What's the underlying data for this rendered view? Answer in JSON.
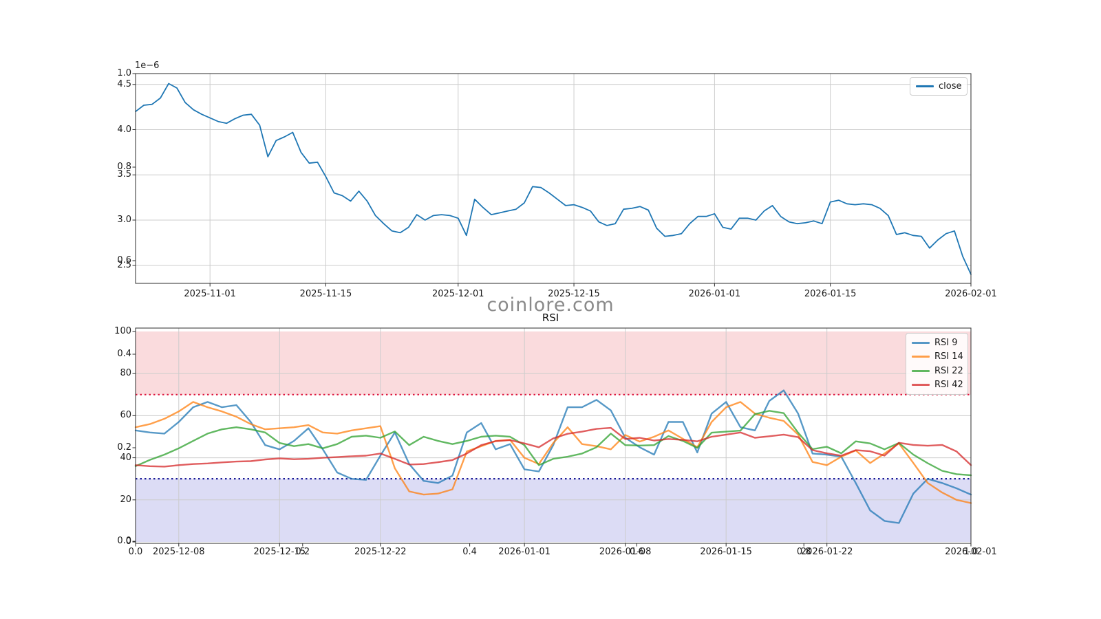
{
  "watermark": "coinlore.com",
  "ghost_axis": {
    "yticks": [
      "1.0",
      "0.8",
      "0.6",
      "0.4",
      "0.2",
      "0.0"
    ],
    "xticks": [
      "0.0",
      "0.2",
      "0.4",
      "0.6",
      "0.8",
      "1.0"
    ]
  },
  "chart_data": [
    {
      "type": "line",
      "title": "",
      "offset_text": "1e−6",
      "legend_position": "upper right",
      "grid": true,
      "x_start_date": "2025-10-23",
      "x_interval": "daily",
      "xticks": [
        {
          "label": "2025-11-01",
          "day": 9
        },
        {
          "label": "2025-11-15",
          "day": 23
        },
        {
          "label": "2025-12-01",
          "day": 39
        },
        {
          "label": "2025-12-15",
          "day": 53
        },
        {
          "label": "2026-01-01",
          "day": 70
        },
        {
          "label": "2026-01-15",
          "day": 84
        },
        {
          "label": "2026-02-01",
          "day": 101
        }
      ],
      "yticks": [
        4.5,
        4.0,
        3.5,
        3.0,
        2.5
      ],
      "ylim": [
        2.3,
        4.62
      ],
      "y_unit_multiplier": "1e-6",
      "series": [
        {
          "name": "close",
          "color": "#1f77b4",
          "values": [
            4.2,
            4.27,
            4.28,
            4.35,
            4.51,
            4.46,
            4.3,
            4.22,
            4.17,
            4.13,
            4.09,
            4.07,
            4.12,
            4.16,
            4.17,
            4.05,
            3.7,
            3.88,
            3.92,
            3.97,
            3.75,
            3.63,
            3.64,
            3.48,
            3.3,
            3.27,
            3.21,
            3.32,
            3.21,
            3.05,
            2.96,
            2.88,
            2.86,
            2.92,
            3.06,
            3.0,
            3.05,
            3.06,
            3.05,
            3.02,
            2.83,
            3.23,
            3.14,
            3.06,
            3.08,
            3.1,
            3.12,
            3.19,
            3.37,
            3.36,
            3.3,
            3.23,
            3.16,
            3.17,
            3.14,
            3.1,
            2.98,
            2.94,
            2.96,
            3.12,
            3.13,
            3.15,
            3.11,
            2.91,
            2.82,
            2.83,
            2.85,
            2.96,
            3.04,
            3.04,
            3.07,
            2.92,
            2.9,
            3.02,
            3.02,
            3.0,
            3.1,
            3.16,
            3.04,
            2.98,
            2.96,
            2.97,
            2.99,
            2.96,
            3.2,
            3.22,
            3.18,
            3.17,
            3.18,
            3.17,
            3.13,
            3.05,
            2.84,
            2.86,
            2.83,
            2.82,
            2.69,
            2.78,
            2.85,
            2.88,
            2.6,
            2.4
          ]
        }
      ]
    },
    {
      "type": "line",
      "title": "RSI",
      "legend_position": "upper right",
      "grid": true,
      "x_start_date": "2025-12-05",
      "x_interval": "daily",
      "xticks": [
        {
          "label": "2025-12-08",
          "day": 3
        },
        {
          "label": "2025-12-15",
          "day": 10
        },
        {
          "label": "2025-12-22",
          "day": 17
        },
        {
          "label": "2026-01-01",
          "day": 27
        },
        {
          "label": "2026-01-08",
          "day": 34
        },
        {
          "label": "2026-01-15",
          "day": 41
        },
        {
          "label": "2026-01-22",
          "day": 48
        },
        {
          "label": "2026-02-01",
          "day": 58
        }
      ],
      "yticks": [
        100,
        80,
        60,
        40,
        20,
        0
      ],
      "ylim": [
        -0.65,
        101.6
      ],
      "overbought_level": 70,
      "oversold_level": 30,
      "overbought_line_color": "#dc143c",
      "oversold_line_color": "#00008b",
      "bands": [
        {
          "range": [
            70,
            100
          ],
          "color": "#fadbdd"
        },
        {
          "range": [
            0,
            30
          ],
          "color": "#dcdcf5"
        }
      ],
      "series": [
        {
          "name": "RSI 9",
          "color": "#1f77b4",
          "values": [
            53,
            52,
            51.5,
            57,
            64,
            66.5,
            64,
            65,
            57,
            46,
            44,
            48,
            54,
            44,
            33,
            30,
            29.5,
            41,
            52,
            37,
            29,
            28,
            31.5,
            52,
            56.5,
            44,
            46.5,
            34.5,
            33.5,
            46,
            64,
            64,
            67.5,
            62.5,
            49.5,
            45,
            41.5,
            57,
            57,
            42.5,
            61,
            66.5,
            54.5,
            53,
            67,
            72,
            61,
            42,
            41.5,
            40.5,
            28,
            15,
            10,
            9,
            23,
            30,
            28,
            25.5,
            22.5
          ]
        },
        {
          "name": "RSI 14",
          "color": "#ff7f0e",
          "values": [
            54.5,
            56,
            58.5,
            62,
            66.5,
            64,
            62,
            59.5,
            56,
            53.5,
            54,
            54.5,
            55.5,
            52,
            51.5,
            53,
            54,
            55,
            35,
            24,
            22.5,
            23,
            25,
            43,
            45.5,
            48,
            48.5,
            40,
            37,
            47,
            54.5,
            46.5,
            45.5,
            44,
            50.8,
            47.7,
            50,
            53,
            49,
            45,
            57,
            64,
            66.5,
            61,
            59,
            57.5,
            51,
            38,
            36.5,
            40.5,
            43.5,
            37.5,
            42,
            46.8,
            37.5,
            28,
            23.5,
            20,
            18.5
          ]
        },
        {
          "name": "RSI 22",
          "color": "#2ca02c",
          "values": [
            36,
            39,
            41.5,
            44.5,
            48,
            51.5,
            53.5,
            54.5,
            53.5,
            52,
            47,
            45.5,
            46.5,
            44.5,
            46.5,
            50,
            50.5,
            49.5,
            52.5,
            46,
            50,
            48,
            46.5,
            48,
            50,
            50.5,
            50,
            46,
            36.5,
            39.5,
            40.5,
            42,
            45,
            51.5,
            46,
            45.8,
            46,
            50.3,
            48,
            44.7,
            51.9,
            52.4,
            52.9,
            60.7,
            62.3,
            61.2,
            51.9,
            44.1,
            45.2,
            42.1,
            47.8,
            46.8,
            44,
            47,
            41.5,
            37.4,
            33.8,
            32.2,
            31.7
          ]
        },
        {
          "name": "RSI 42",
          "color": "#d62728",
          "values": [
            36.5,
            36,
            35.8,
            36.5,
            37,
            37.3,
            37.8,
            38.2,
            38.4,
            39.2,
            39.7,
            39.3,
            39.5,
            40,
            40.3,
            40.7,
            41,
            42,
            39.5,
            36.8,
            37,
            37.9,
            38.9,
            42,
            46,
            47.9,
            48.4,
            46.8,
            45,
            49.2,
            51.4,
            52.4,
            53.7,
            54.2,
            48.9,
            49.5,
            48.2,
            48.9,
            48.5,
            47.8,
            50,
            51,
            52,
            49.5,
            50.2,
            51,
            49.8,
            43.6,
            42.1,
            41,
            43.6,
            43.1,
            41,
            47.1,
            46.1,
            45.7,
            46.1,
            43,
            36.5
          ]
        }
      ]
    }
  ]
}
